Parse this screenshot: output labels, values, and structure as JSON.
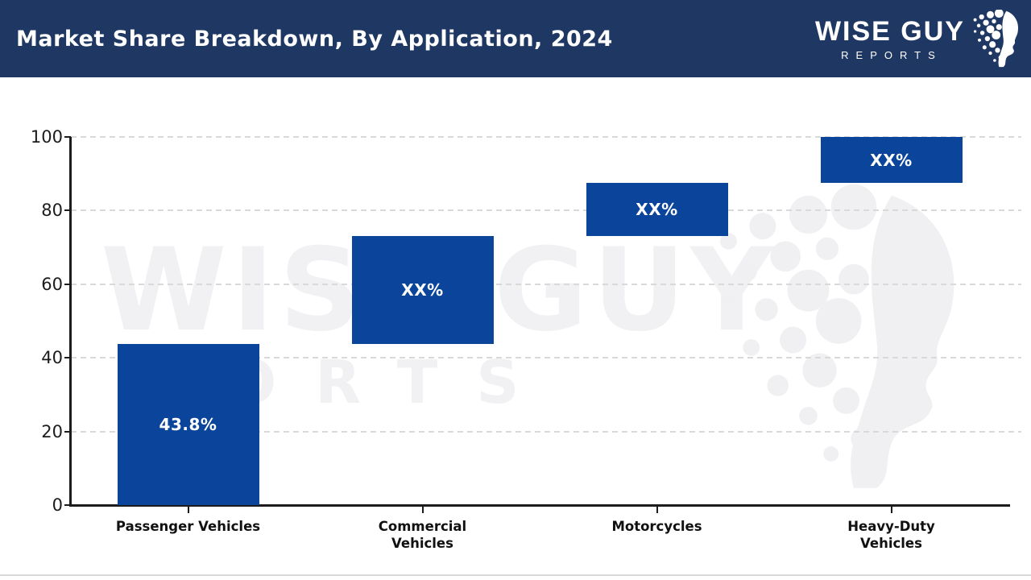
{
  "header": {
    "title": "Market Share Breakdown, By Application, 2024",
    "bg_color": "#1f3763",
    "text_color": "#ffffff",
    "logo": {
      "line1": "WISE GUY",
      "line2": "REPORTS"
    }
  },
  "watermark": {
    "line1": "WISE GUY",
    "line2": "PORTS"
  },
  "chart_data": {
    "type": "bar",
    "subtype": "floating-waterfall",
    "title": "",
    "xlabel": "",
    "ylabel": "",
    "ylim": [
      0,
      100
    ],
    "yticks": [
      0,
      20,
      40,
      60,
      80,
      100
    ],
    "grid": "horizontal-dashed",
    "legend": "none",
    "categories": [
      "Passenger Vehicles",
      "Commercial Vehicles",
      "Motorcycles",
      "Heavy-Duty Vehicles"
    ],
    "category_label_lines": [
      [
        "Passenger Vehicles"
      ],
      [
        "Commercial",
        "Vehicles"
      ],
      [
        "Motorcycles"
      ],
      [
        "Heavy-Duty",
        "Vehicles"
      ]
    ],
    "bars": [
      {
        "category": "Passenger Vehicles",
        "start": 0,
        "end": 43.8,
        "label": "43.8%"
      },
      {
        "category": "Commercial Vehicles",
        "start": 43.8,
        "end": 73.0,
        "label": "XX%"
      },
      {
        "category": "Motorcycles",
        "start": 73.0,
        "end": 87.5,
        "label": "XX%"
      },
      {
        "category": "Heavy-Duty Vehicles",
        "start": 87.5,
        "end": 100,
        "label": "XX%"
      }
    ],
    "bar_color": "#0a449b",
    "bar_label_color": "#ffffff",
    "axis_color": "#1c1c1c",
    "grid_color": "#d9d9d9",
    "tick_label_color": "#1c1c1c",
    "category_label_color": "#111111"
  }
}
